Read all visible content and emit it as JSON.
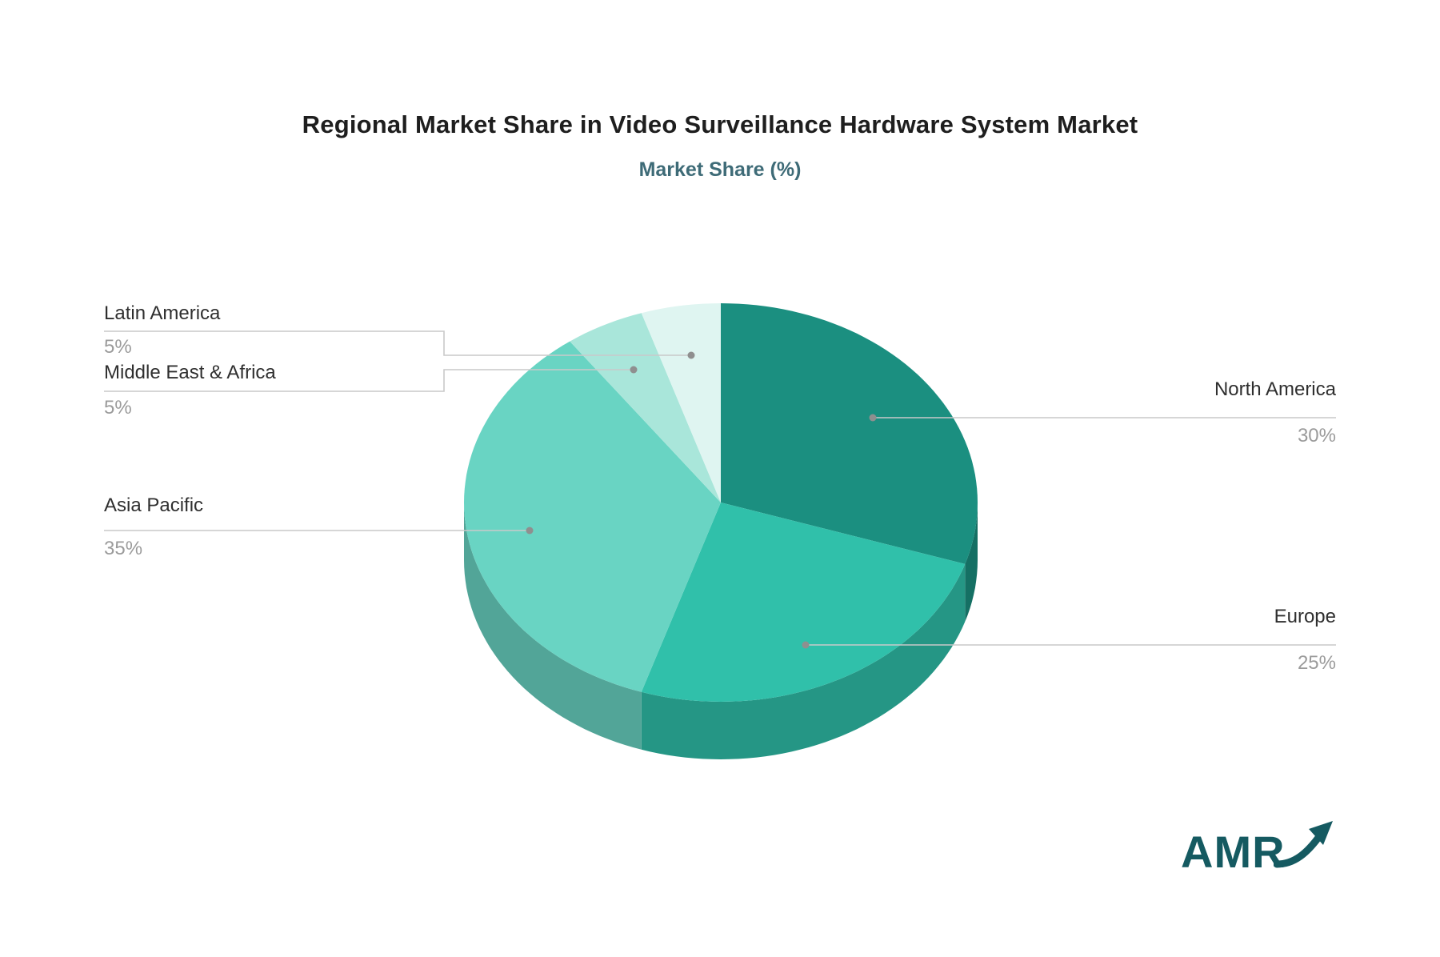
{
  "chart_data": {
    "type": "pie",
    "title": "Regional Market Share in Video Surveillance Hardware System Market",
    "subtitle": "Market Share (%)",
    "unit": "%",
    "effect": "3d",
    "start_angle": "top",
    "direction": "clockwise",
    "legend_position": "none",
    "labels_style": "callout-leader-lines",
    "slices": [
      {
        "label": "North America",
        "value": 30,
        "pct_label": "30%",
        "color": "#1b8f80"
      },
      {
        "label": "Europe",
        "value": 25,
        "pct_label": "25%",
        "color": "#30c0aa"
      },
      {
        "label": "Asia Pacific",
        "value": 35,
        "pct_label": "35%",
        "color": "#69d4c3"
      },
      {
        "label": "Middle East & Africa",
        "value": 5,
        "pct_label": "5%",
        "color": "#a9e6da"
      },
      {
        "label": "Latin America",
        "value": 5,
        "pct_label": "5%",
        "color": "#dff5f1"
      }
    ]
  },
  "branding": {
    "logo_text": "AMR",
    "logo_color": "#155a61"
  },
  "colors": {
    "background": "#ffffff",
    "title_text": "#1e1e1e",
    "subtitle_text": "#3e6b77",
    "label_text": "#2f2f2f",
    "pct_text": "#9b9b9b",
    "leader_line": "#c9c9c9",
    "leader_dot": "#8f8f8f"
  }
}
